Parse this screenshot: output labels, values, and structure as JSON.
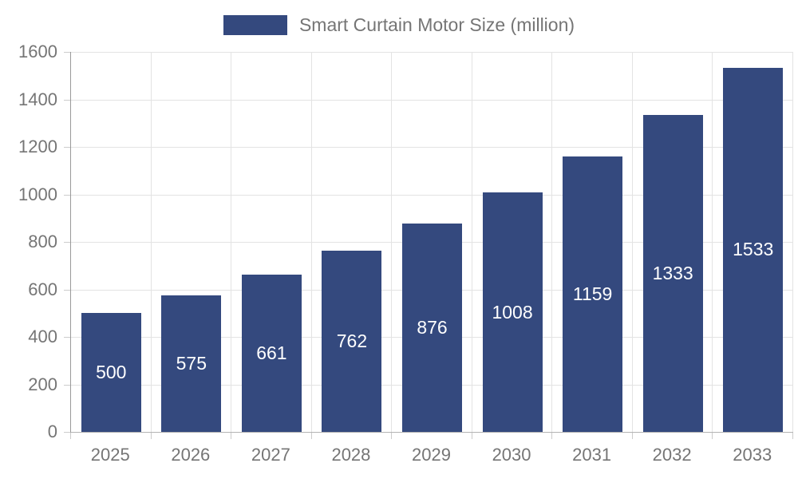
{
  "legend": {
    "label": "Smart Curtain Motor Size (million)"
  },
  "chart_data": {
    "type": "bar",
    "title": "Smart Curtain Motor Size (million)",
    "series_name": "Smart Curtain Motor Size (million)",
    "categories": [
      "2025",
      "2026",
      "2027",
      "2028",
      "2029",
      "2030",
      "2031",
      "2032",
      "2033"
    ],
    "values": [
      500,
      575,
      661,
      762,
      876,
      1008,
      1159,
      1333,
      1533
    ],
    "xlabel": "",
    "ylabel": "",
    "ylim": [
      0,
      1600
    ],
    "ytick_interval": 200,
    "ytick_labels": [
      "0",
      "200",
      "400",
      "600",
      "800",
      "1000",
      "1200",
      "1400",
      "1600"
    ],
    "grid": true,
    "legend_position": "top-center",
    "value_labels_shown": true,
    "colors": {
      "bar": "#34497e",
      "value_label": "#ffffff",
      "axis_label": "#757575",
      "gridline": "#e3e3e3",
      "y_axis_line": "#999999",
      "x_axis_line": "#b3b3b3",
      "tick_mark": "#cccccc"
    }
  }
}
